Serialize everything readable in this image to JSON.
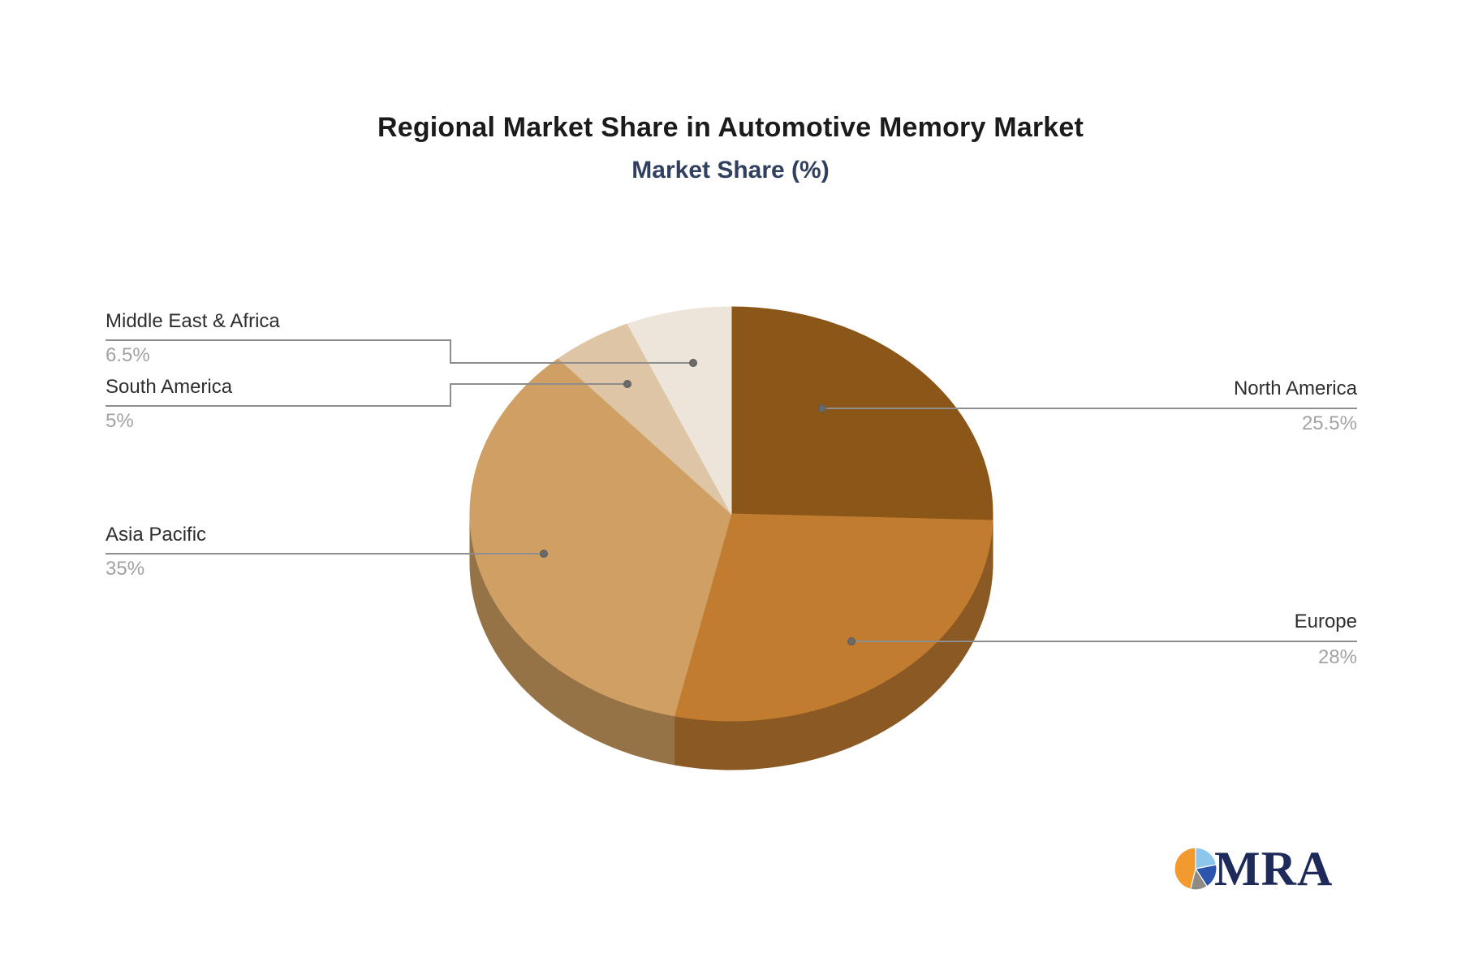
{
  "title": "Regional Market Share in Automotive Memory Market",
  "subtitle": "Market Share (%)",
  "chart_data": {
    "type": "pie",
    "style": "3d",
    "title": "Regional Market Share in Automotive Memory Market",
    "subtitle": "Market Share (%)",
    "unit": "%",
    "start_angle": "12-o-clock",
    "direction": "clockwise",
    "legend_position": "callout-labels",
    "slices": [
      {
        "label": "North America",
        "value": 25.5,
        "display": "25.5%",
        "color": "#8B5719",
        "callout_side": "right"
      },
      {
        "label": "Europe",
        "value": 28,
        "display": "28%",
        "color": "#C17C30",
        "callout_side": "right"
      },
      {
        "label": "Asia Pacific",
        "value": 35,
        "display": "35%",
        "color": "#D09F63",
        "callout_side": "left"
      },
      {
        "label": "South America",
        "value": 5,
        "display": "5%",
        "color": "#DDC5A6",
        "callout_side": "left"
      },
      {
        "label": "Middle East & Africa",
        "value": 6.5,
        "display": "6.5%",
        "color": "#EEE5DA",
        "callout_side": "left"
      }
    ]
  },
  "logo": {
    "text": "MRA",
    "text_color": "#1E2A5A",
    "icon": "pie-chart-logo-icon",
    "icon_colors": [
      "#8CC6EA",
      "#2C55AE",
      "#8F8B82",
      "#F29A2E"
    ]
  },
  "colors": {
    "background": "#FFFFFF",
    "title": "#1B1B1B",
    "subtitle": "#31405F",
    "label_text": "#2E2E2E",
    "value_text": "#A2A2A2",
    "callout_line": "#8E8E8E",
    "callout_dot": "#6A6A6A"
  }
}
